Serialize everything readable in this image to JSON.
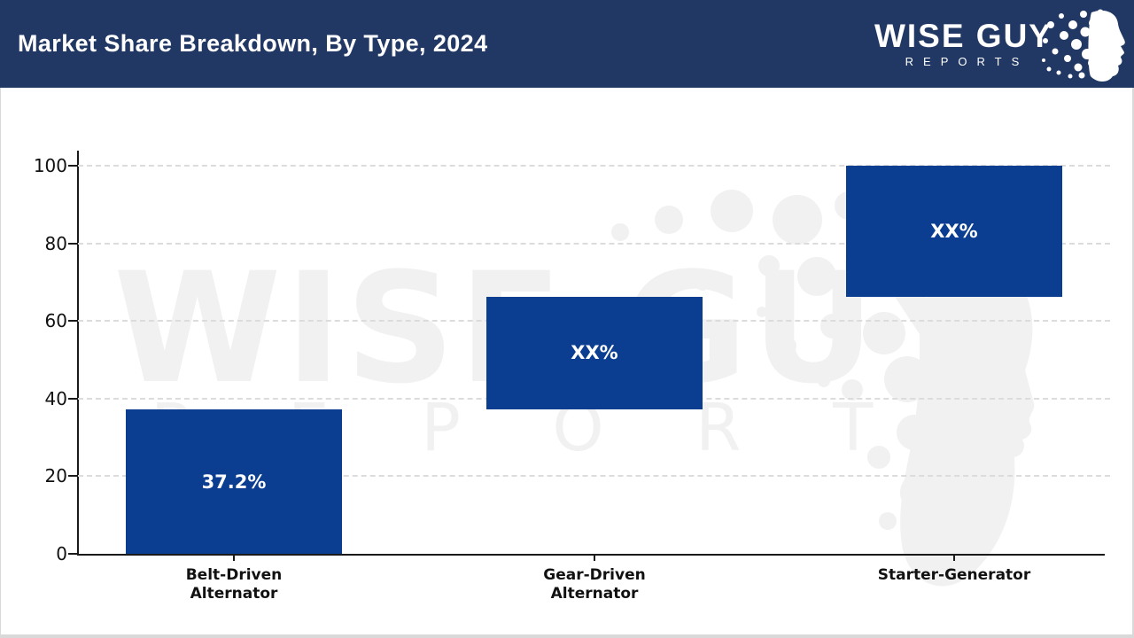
{
  "header": {
    "title": "Market Share Breakdown, By Type, 2024",
    "logo": {
      "line1": "WISE GUY",
      "line2": "REPORTS",
      "face_icon": "face-profile-dots-icon"
    }
  },
  "chart_data": {
    "type": "bar",
    "subtype": "waterfall",
    "title": "Market Share Breakdown, By Type, 2024",
    "categories": [
      [
        "Belt-Driven",
        "Alternator"
      ],
      [
        "Gear-Driven",
        "Alternator"
      ],
      [
        "Starter-Generator"
      ]
    ],
    "segments": [
      {
        "category": "Belt-Driven Alternator",
        "start": 0,
        "end": 37.2,
        "label": "37.2%"
      },
      {
        "category": "Gear-Driven Alternator",
        "start": 37.2,
        "end": 66.3,
        "label": "XX%"
      },
      {
        "category": "Starter-Generator",
        "start": 66.3,
        "end": 100,
        "label": "XX%"
      }
    ],
    "ylabel": "",
    "xlabel": "",
    "ylim": [
      0,
      100
    ],
    "yticks": [
      0,
      20,
      40,
      60,
      80,
      100
    ],
    "grid": "dashed-horizontal",
    "legend": "none",
    "bar_color": "#0b3d91",
    "bar_label_color": "#ffffff"
  },
  "watermark": {
    "line1": "WISE GUY",
    "line2": "R E P O R T S"
  },
  "colors": {
    "header_bg": "#213864",
    "bar": "#0b3d91",
    "grid": "#dcdcdc",
    "axis": "#1a1a1a",
    "watermark": "#f1f1f1",
    "bottom_strip": "#d9d9d9"
  }
}
